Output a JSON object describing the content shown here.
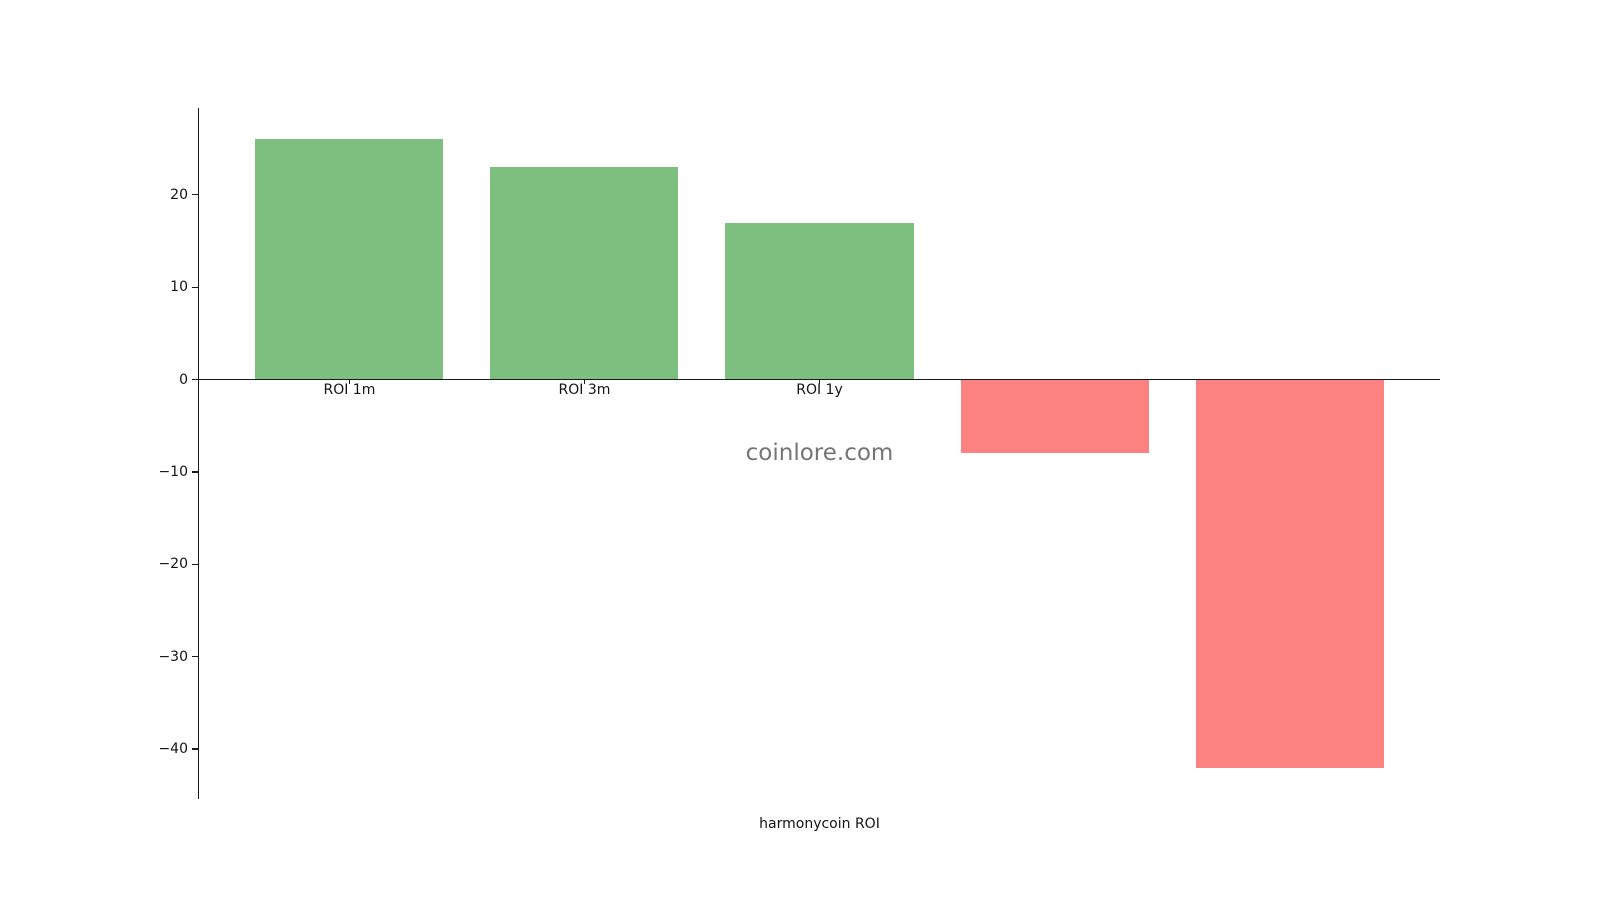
{
  "chart_data": {
    "type": "bar",
    "title": "harmonycoin ROI",
    "watermark": "coinlore.com",
    "categories": [
      "ROI 1m",
      "ROI 3m",
      "ROI 1y",
      "",
      ""
    ],
    "values": [
      26,
      23,
      17,
      -8,
      -42
    ],
    "yticks": [
      20,
      10,
      0,
      -10,
      -20,
      -30,
      -40
    ],
    "ylim": [
      -45.4,
      29.4
    ],
    "grid": false,
    "legend": null,
    "positive_color": "#7cbf7e",
    "negative_color": "#fc8181",
    "axis_color": "#1a1a1a",
    "text_color": "#141414",
    "watermark_color": "#757575",
    "background_color": "#ffffff"
  }
}
